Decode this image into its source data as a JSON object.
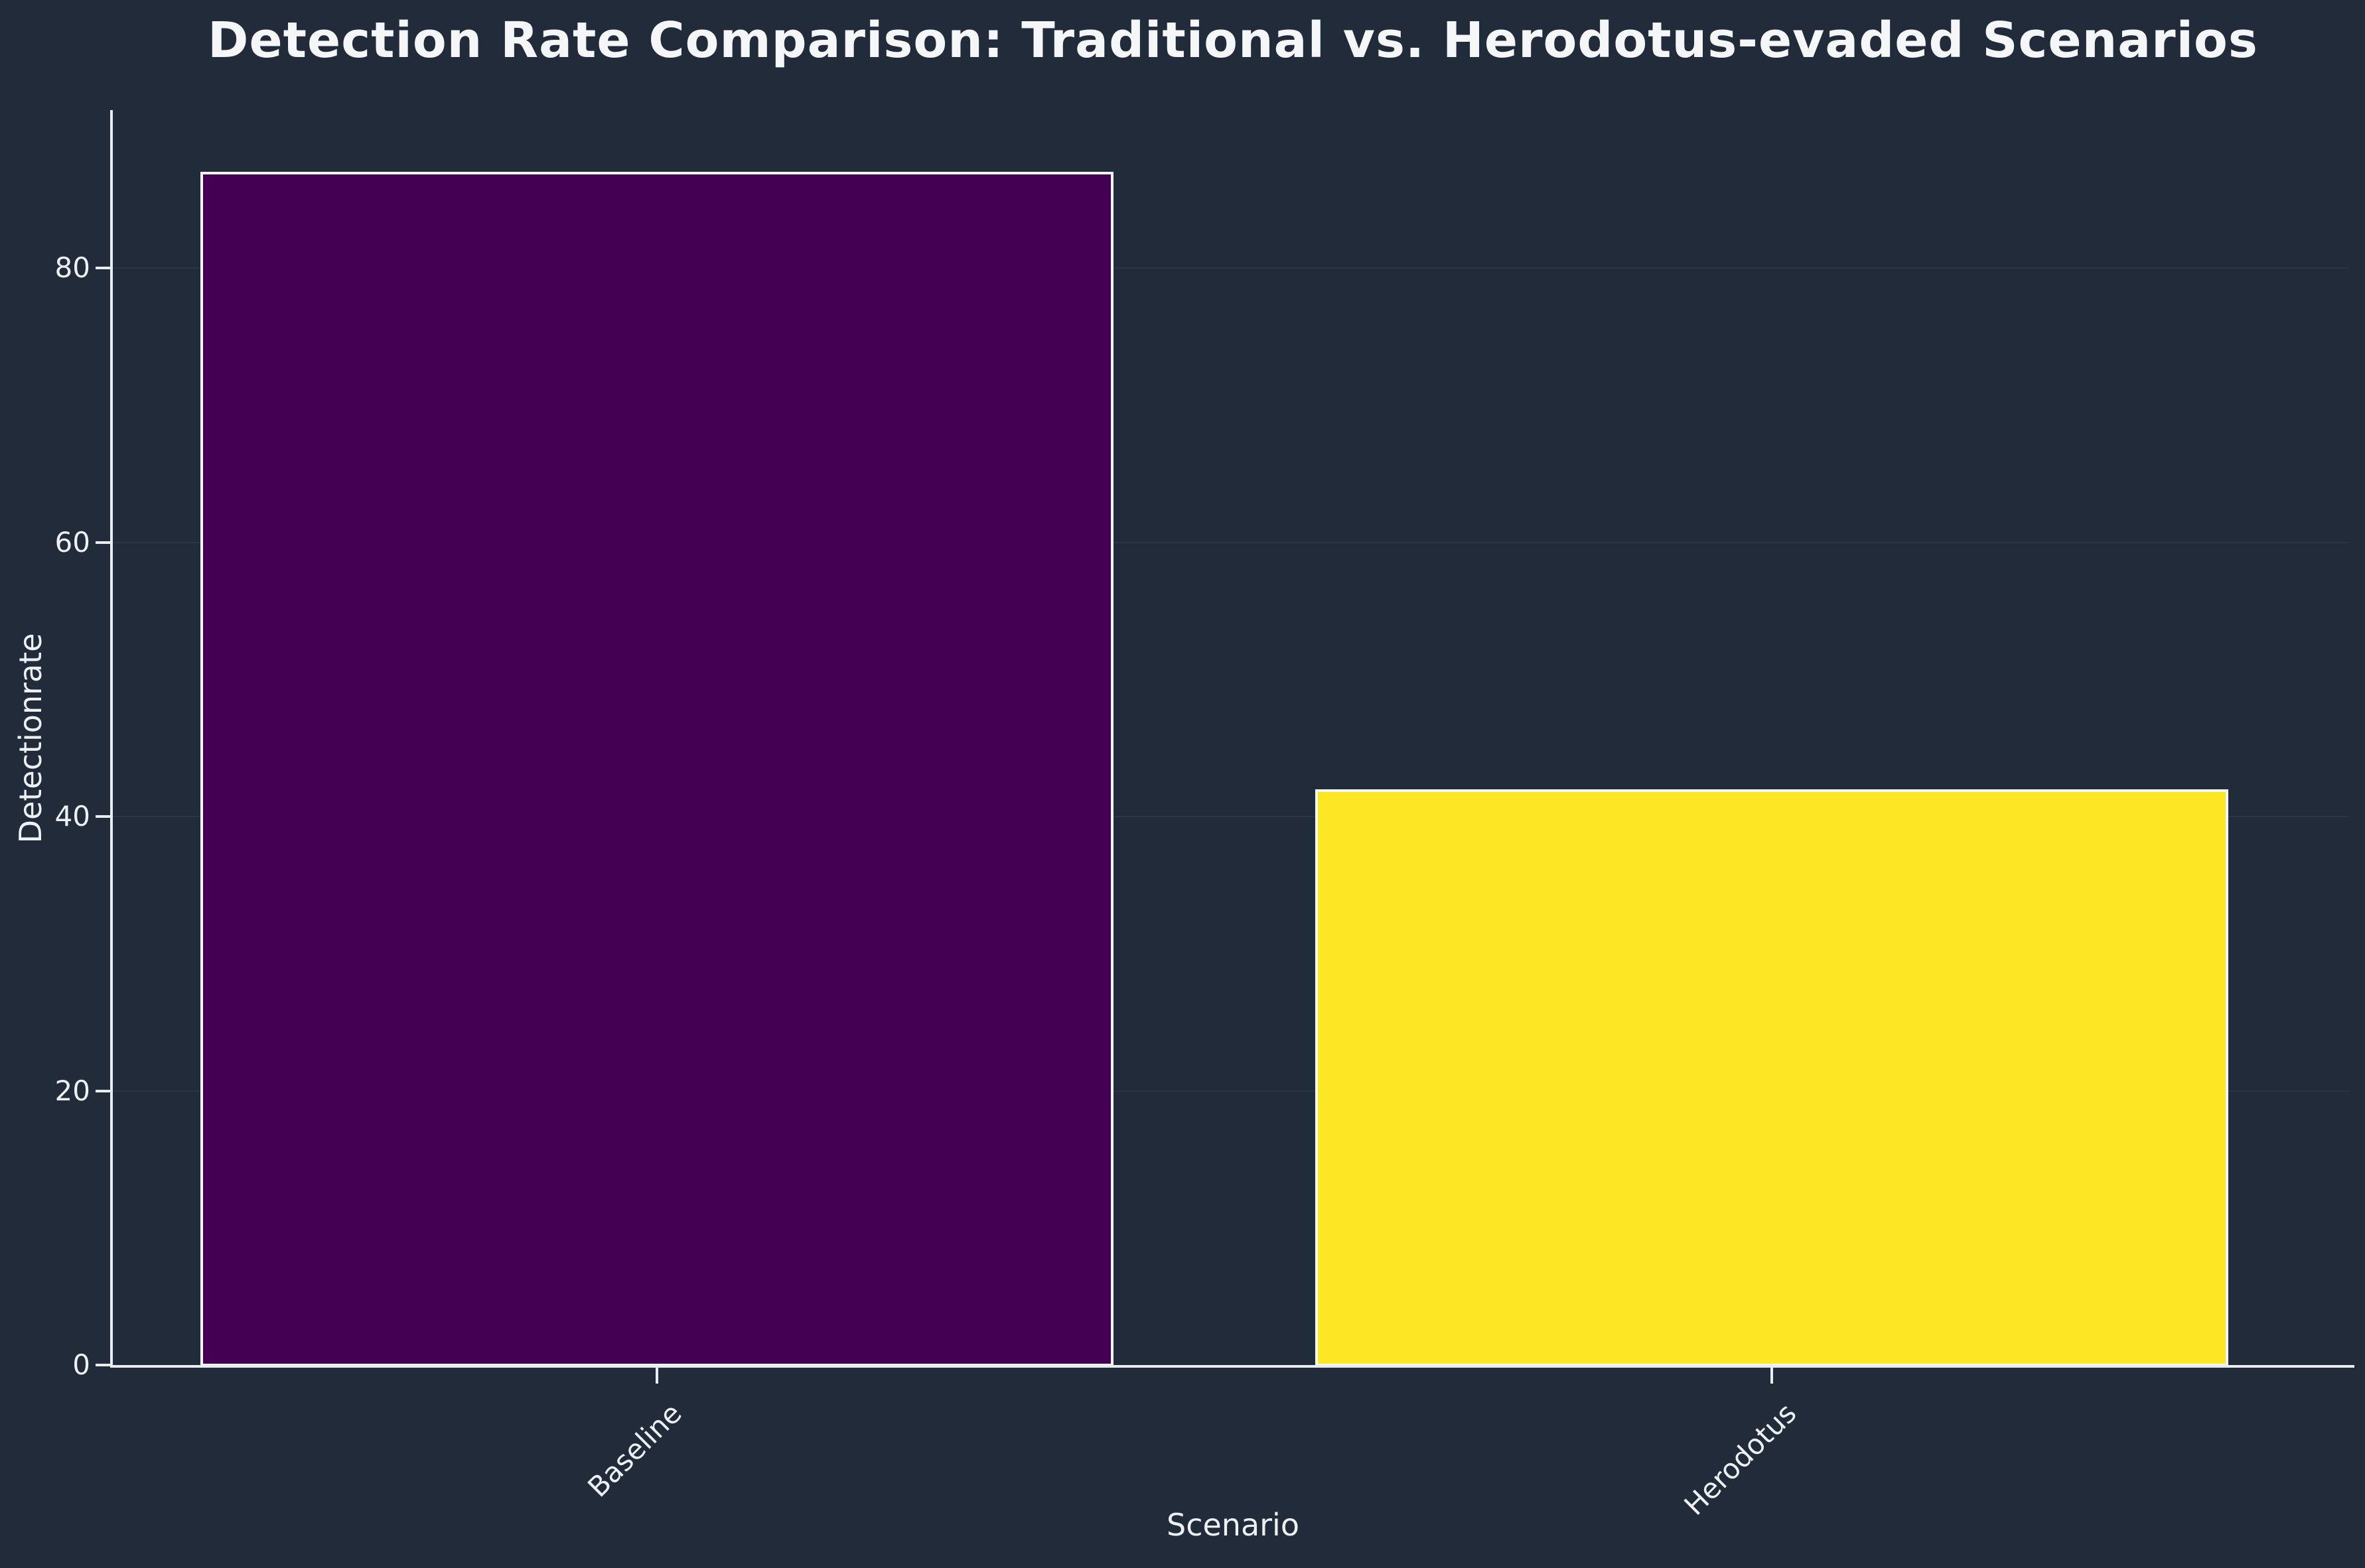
{
  "chart_data": {
    "type": "bar",
    "title": "Detection Rate Comparison: Traditional vs. Herodotus-evaded Scenarios",
    "xlabel": "Scenario",
    "ylabel": "Detectionrate",
    "categories": [
      "Baseline",
      "Herodotus"
    ],
    "values": [
      87,
      42
    ],
    "bar_colors": [
      "#440154",
      "#fde725"
    ],
    "bar_edge_color": "#f5f6f8",
    "yticks": [
      0,
      20,
      40,
      60,
      80
    ],
    "ylim": [
      0,
      91.5
    ],
    "grid": "horizontal-subtle",
    "legend_position": "none",
    "x_tick_rotation_deg": 45,
    "background_color": "#212b3a",
    "accent_text_color": "#f4f6f8"
  }
}
